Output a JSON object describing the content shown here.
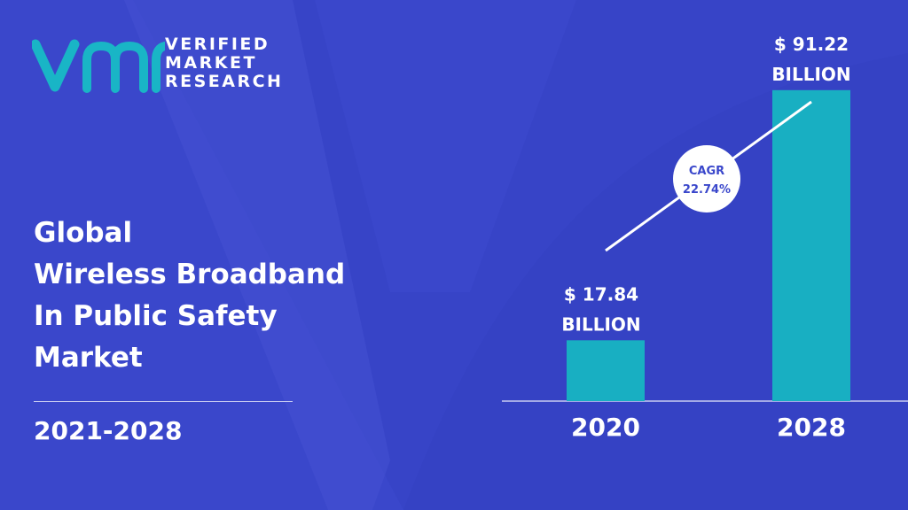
{
  "brand": {
    "logo_mark": "vmr",
    "line1": "VERIFIED",
    "line2": "MARKET",
    "line3": "RESEARCH"
  },
  "report": {
    "title_lines": [
      "Global",
      "Wireless Broadband",
      "In Public Safety",
      "Market"
    ],
    "period": "2021-2028"
  },
  "colors": {
    "background": "#3a47cb",
    "bar": "#18afc2",
    "logo_mark": "#19b5c6",
    "text": "#ffffff"
  },
  "chart_data": {
    "type": "bar",
    "categories": [
      "2020",
      "2028"
    ],
    "values": [
      17.84,
      91.22
    ],
    "data_labels": [
      [
        "$ 17.84",
        "BILLION"
      ],
      [
        "$ 91.22",
        "BILLION"
      ]
    ],
    "unit": "Billion USD",
    "ylim": [
      0,
      100
    ],
    "cagr": {
      "label": "CAGR",
      "value": "22.74%"
    },
    "grid": false,
    "legend": "none"
  }
}
